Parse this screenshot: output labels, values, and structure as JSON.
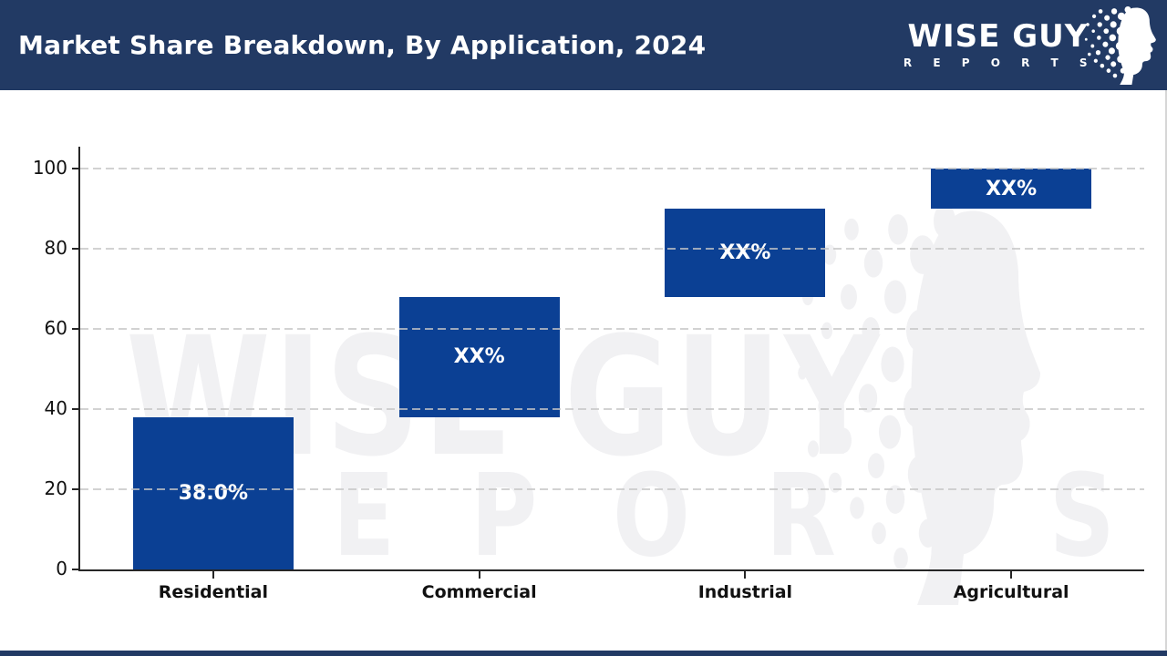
{
  "header": {
    "title": "Market Share Breakdown, By Application, 2024",
    "brand": {
      "name": "WISE GUY",
      "sub": "REPORTS"
    }
  },
  "watermark": {
    "line1": "WISE GUY",
    "line2": "REPORTS"
  },
  "colors": {
    "header_bg": "#223a64",
    "footer_bg": "#223a64",
    "bar": "#0b4094",
    "axis": "#262626",
    "watermark": "#f1f1f3"
  },
  "chart_data": {
    "type": "bar",
    "subtype": "waterfall",
    "title": "Market Share Breakdown, By Application, 2024",
    "xlabel": "",
    "ylabel": "",
    "categories": [
      "Residential",
      "Commercial",
      "Industrial",
      "Agricultural"
    ],
    "segments": [
      {
        "category": "Residential",
        "start": 0,
        "end": 38,
        "label": "38.0%"
      },
      {
        "category": "Commercial",
        "start": 38,
        "end": 68,
        "label": "XX%"
      },
      {
        "category": "Industrial",
        "start": 68,
        "end": 90,
        "label": "XX%"
      },
      {
        "category": "Agricultural",
        "start": 90,
        "end": 100,
        "label": "XX%"
      }
    ],
    "yticks": [
      0,
      20,
      40,
      60,
      80,
      100
    ],
    "ylim": [
      0,
      106
    ],
    "grid": "horizontal-dashed",
    "grid_over_bars": true,
    "legend": "none",
    "bar_color": "#0b4094"
  }
}
